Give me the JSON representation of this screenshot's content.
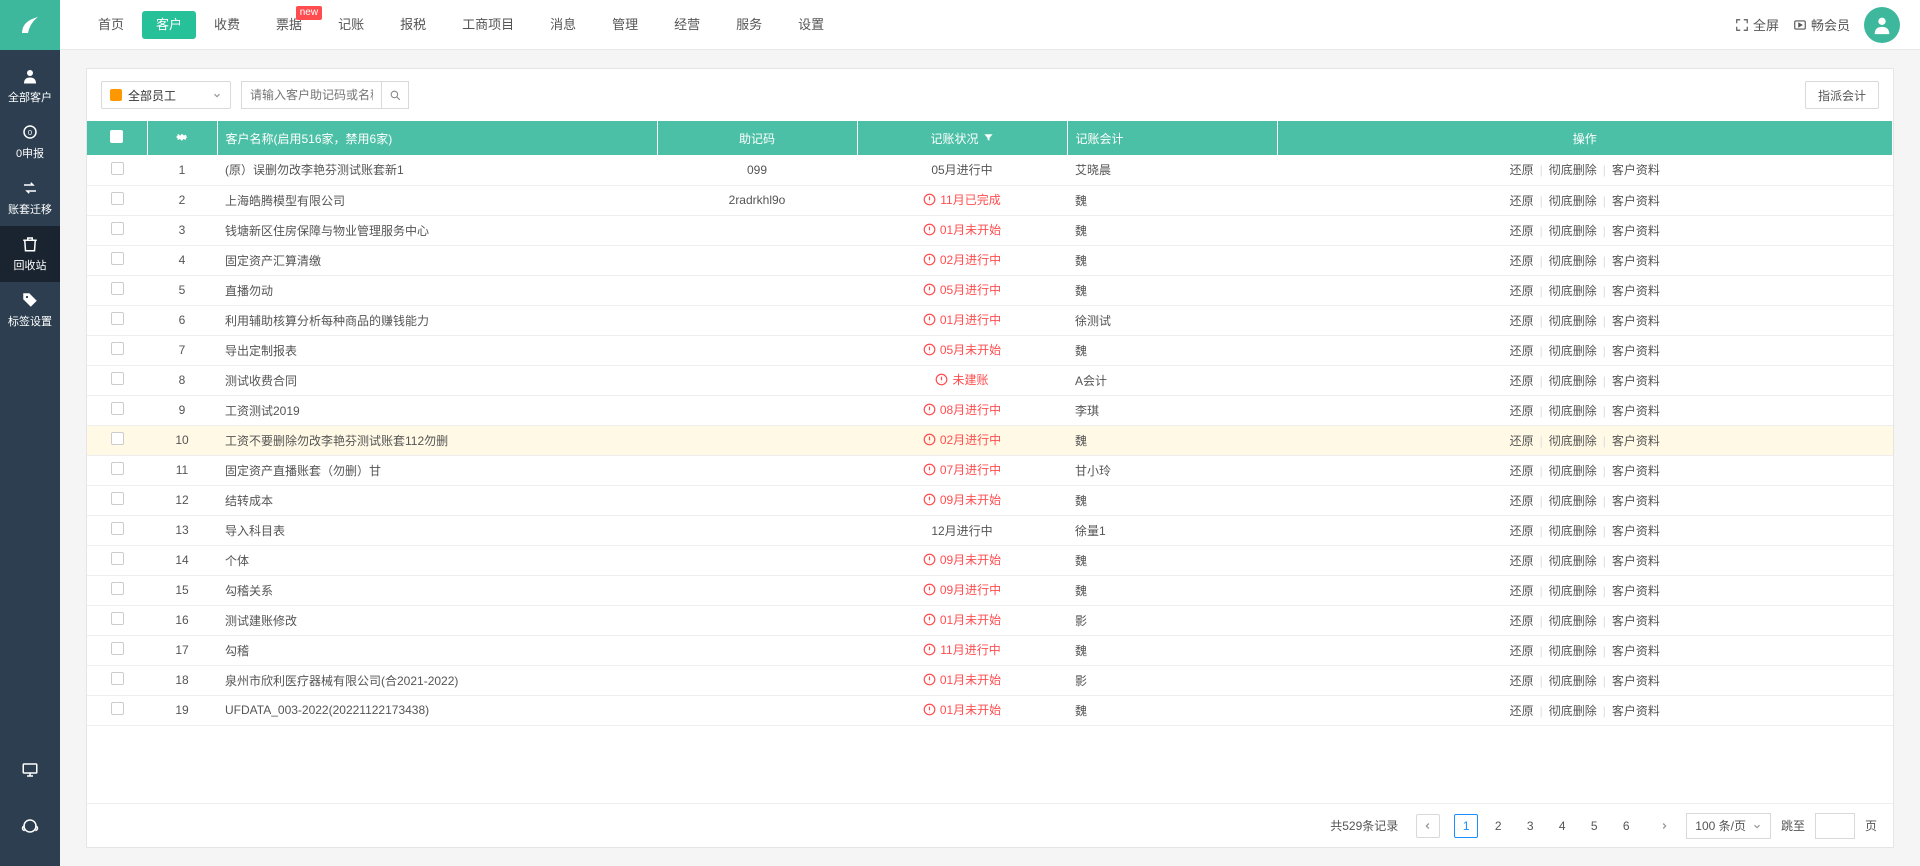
{
  "nav": {
    "items": [
      {
        "label": "首页"
      },
      {
        "label": "客户",
        "active": true
      },
      {
        "label": "收费"
      },
      {
        "label": "票据",
        "badge": "new"
      },
      {
        "label": "记账"
      },
      {
        "label": "报税"
      },
      {
        "label": "工商项目"
      },
      {
        "label": "消息"
      },
      {
        "label": "管理"
      },
      {
        "label": "经营"
      },
      {
        "label": "服务"
      },
      {
        "label": "设置"
      }
    ],
    "fullscreen": "全屏",
    "member": "畅会员"
  },
  "sidebar": {
    "items": [
      {
        "icon": "user",
        "label": "全部客户"
      },
      {
        "icon": "zero",
        "label": "0申报"
      },
      {
        "icon": "transfer",
        "label": "账套迁移"
      },
      {
        "icon": "trash",
        "label": "回收站",
        "active": true
      },
      {
        "icon": "tag",
        "label": "标签设置"
      }
    ]
  },
  "toolbar": {
    "employee_select": "全部员工",
    "search_placeholder": "请输入客户助记码或名称",
    "assign_btn": "指派会计"
  },
  "table": {
    "headers": {
      "customer_name": "客户名称(启用516家，禁用6家)",
      "mnemonic": "助记码",
      "status": "记账状况",
      "accountant": "记账会计",
      "ops": "操作"
    },
    "op_labels": {
      "restore": "还原",
      "delete": "彻底删除",
      "details": "客户资料"
    },
    "rows": [
      {
        "idx": 1,
        "name": "(原）误删勿改李艳芬测试账套新1",
        "code": "099",
        "status": "05月进行中",
        "warn": false,
        "acct": "艾晓晨"
      },
      {
        "idx": 2,
        "name": "上海皓腾模型有限公司",
        "code": "2radrkhl9o",
        "status": "11月已完成",
        "warn": true,
        "acct": "魏"
      },
      {
        "idx": 3,
        "name": "钱塘新区住房保障与物业管理服务中心",
        "code": "",
        "status": "01月未开始",
        "warn": true,
        "acct": "魏"
      },
      {
        "idx": 4,
        "name": "固定资产汇算清缴",
        "code": "",
        "status": "02月进行中",
        "warn": true,
        "acct": "魏"
      },
      {
        "idx": 5,
        "name": "直播勿动",
        "code": "",
        "status": "05月进行中",
        "warn": true,
        "acct": "魏"
      },
      {
        "idx": 6,
        "name": "利用辅助核算分析每种商品的赚钱能力",
        "code": "",
        "status": "01月进行中",
        "warn": true,
        "acct": "徐测试"
      },
      {
        "idx": 7,
        "name": "导出定制报表",
        "code": "",
        "status": "05月未开始",
        "warn": true,
        "acct": "魏"
      },
      {
        "idx": 8,
        "name": "测试收费合同",
        "code": "",
        "status": "未建账",
        "warn": true,
        "acct": "A会计"
      },
      {
        "idx": 9,
        "name": "工资测试2019",
        "code": "",
        "status": "08月进行中",
        "warn": true,
        "acct": "李琪"
      },
      {
        "idx": 10,
        "name": "工资不要删除勿改李艳芬测试账套112勿删",
        "code": "",
        "status": "02月进行中",
        "warn": true,
        "acct": "魏",
        "highlight": true
      },
      {
        "idx": 11,
        "name": "固定资产直播账套（勿删）甘",
        "code": "",
        "status": "07月进行中",
        "warn": true,
        "acct": "甘小玲"
      },
      {
        "idx": 12,
        "name": "结转成本",
        "code": "",
        "status": "09月未开始",
        "warn": true,
        "acct": "魏"
      },
      {
        "idx": 13,
        "name": "导入科目表",
        "code": "",
        "status": "12月进行中",
        "warn": false,
        "acct": "徐量1"
      },
      {
        "idx": 14,
        "name": "个体",
        "code": "",
        "status": "09月未开始",
        "warn": true,
        "acct": "魏"
      },
      {
        "idx": 15,
        "name": "勾稽关系",
        "code": "",
        "status": "09月进行中",
        "warn": true,
        "acct": "魏"
      },
      {
        "idx": 16,
        "name": "测试建账修改",
        "code": "",
        "status": "01月未开始",
        "warn": true,
        "acct": "影"
      },
      {
        "idx": 17,
        "name": "勾稽",
        "code": "",
        "status": "11月进行中",
        "warn": true,
        "acct": "魏"
      },
      {
        "idx": 18,
        "name": "泉州市欣利医疗器械有限公司(合2021-2022)",
        "code": "",
        "status": "01月未开始",
        "warn": true,
        "acct": "影"
      },
      {
        "idx": 19,
        "name": "UFDATA_003-2022(20221122173438)",
        "code": "",
        "status": "01月未开始",
        "warn": true,
        "acct": "魏"
      }
    ]
  },
  "pager": {
    "total_text": "共529条记录",
    "pages": [
      "1",
      "2",
      "3",
      "4",
      "5",
      "6"
    ],
    "current": 1,
    "page_size": "100 条/页",
    "jump_label": "跳至",
    "jump_suffix": "页"
  },
  "colors": {
    "primary": "#26c198",
    "header_bg": "#4cc0a6",
    "sidebar_bg": "#2c3e50",
    "warn": "#ff4d4f",
    "highlight_row": "#fff9e6"
  }
}
